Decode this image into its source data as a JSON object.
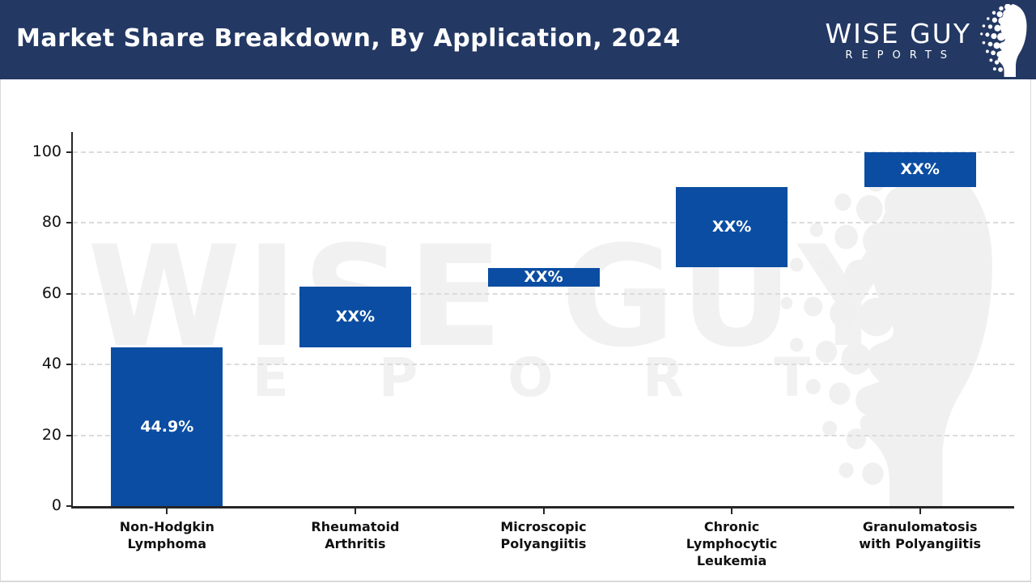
{
  "header": {
    "title": "Market Share Breakdown, By Application, 2024",
    "logo": {
      "name": "WISE GUY",
      "sub": "REPORTS"
    }
  },
  "watermark": {
    "line1": "WISE GUY",
    "line2": "REPORTS"
  },
  "colors": {
    "header_bg": "#233863",
    "bar": "#0B4DA2",
    "bar_label": "#FFFFFF",
    "grid": "#DBDBDB",
    "axis": "#262626",
    "watermark": "#F1F1F1"
  },
  "chart_data": {
    "type": "bar",
    "subtype": "waterfall",
    "title": "Market Share Breakdown, By Application, 2024",
    "xlabel": "",
    "ylabel": "",
    "ylim": [
      0,
      105
    ],
    "yticks": [
      0,
      20,
      40,
      60,
      80,
      100
    ],
    "grid": "horizontal dashed gridlines at 20,40,60,80,100",
    "legend": "none",
    "categories": [
      "Non-Hodgkin Lymphoma",
      "Rheumatoid Arthritis",
      "Microscopic Polyangiitis",
      "Chronic Lymphocytic Leukemia",
      "Granulomatosis with Polyangiitis"
    ],
    "category_lines": [
      [
        "Non-Hodgkin",
        "Lymphoma"
      ],
      [
        "Rheumatoid",
        "Arthritis"
      ],
      [
        "Microscopic",
        "Polyangiitis"
      ],
      [
        "Chronic",
        "Lymphocytic",
        "Leukemia"
      ],
      [
        "Granulomatosis",
        "with Polyangiitis"
      ]
    ],
    "segments": [
      {
        "category": "Non-Hodgkin Lymphoma",
        "start": 0,
        "end": 44.9,
        "label": "44.9%"
      },
      {
        "category": "Rheumatoid Arthritis",
        "start": 44.9,
        "end": 62,
        "label": "XX%"
      },
      {
        "category": "Microscopic Polyangiitis",
        "start": 62,
        "end": 67.3,
        "label": "XX%"
      },
      {
        "category": "Chronic Lymphocytic Leukemia",
        "start": 67.5,
        "end": 90,
        "label": "XX%"
      },
      {
        "category": "Granulomatosis with Polyangiitis",
        "start": 90,
        "end": 100,
        "label": "XX%"
      }
    ]
  }
}
